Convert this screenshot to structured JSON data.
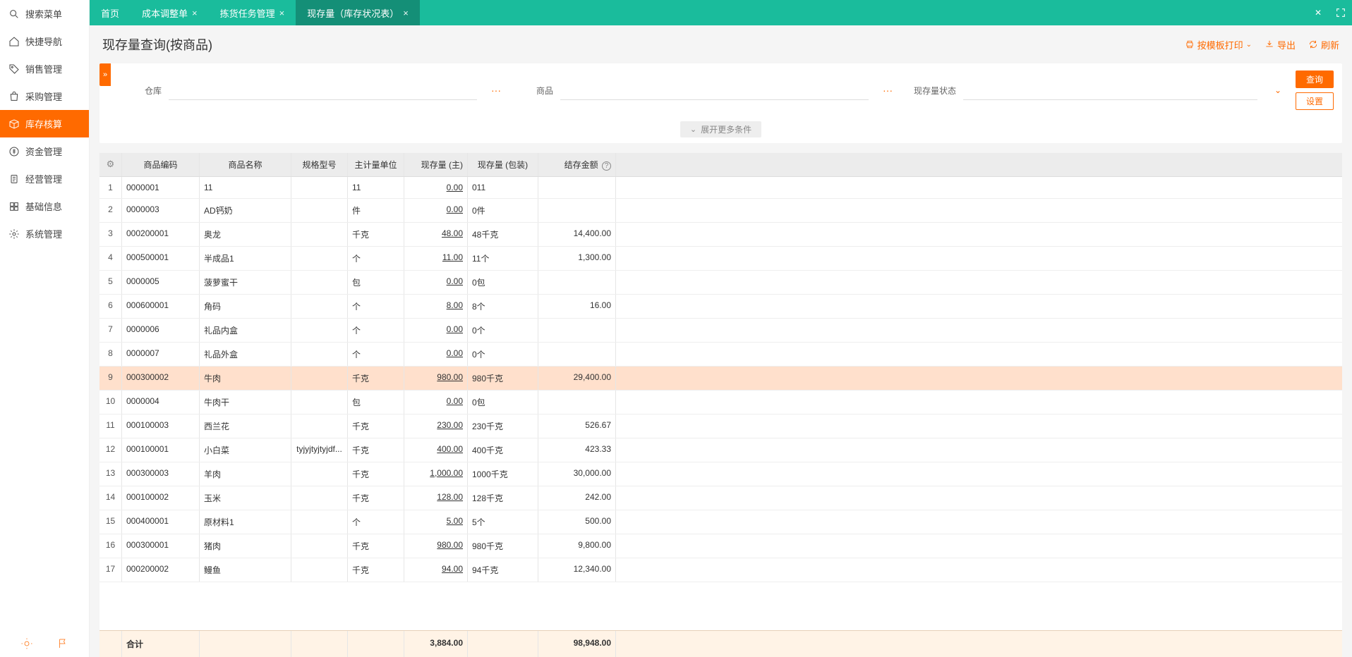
{
  "sidebar": {
    "items": [
      {
        "label": "搜索菜单",
        "icon": "search"
      },
      {
        "label": "快捷导航",
        "icon": "home"
      },
      {
        "label": "销售管理",
        "icon": "tag"
      },
      {
        "label": "采购管理",
        "icon": "bag"
      },
      {
        "label": "库存核算",
        "icon": "box",
        "active": true
      },
      {
        "label": "资金管理",
        "icon": "money"
      },
      {
        "label": "经营管理",
        "icon": "clip"
      },
      {
        "label": "基础信息",
        "icon": "grid"
      },
      {
        "label": "系统管理",
        "icon": "gear"
      }
    ]
  },
  "tabs": [
    {
      "label": "首页",
      "closable": false
    },
    {
      "label": "成本调整单",
      "closable": true
    },
    {
      "label": "拣货任务管理",
      "closable": true
    },
    {
      "label": "现存量（库存状况表）",
      "closable": true,
      "active": true
    }
  ],
  "page": {
    "title": "现存量查询(按商品)",
    "actions": {
      "printTpl": "按模板打印",
      "export": "导出",
      "refresh": "刷新"
    }
  },
  "filters": {
    "warehouse": {
      "label": "仓库"
    },
    "product": {
      "label": "商品"
    },
    "status": {
      "label": "现存量状态"
    },
    "queryBtn": "查询",
    "settingBtn": "设置",
    "expand": "展开更多条件"
  },
  "table": {
    "columns": {
      "code": "商品编码",
      "name": "商品名称",
      "spec": "规格型号",
      "unit": "主计量单位",
      "qty": "现存量 (主)",
      "pack": "现存量 (包装)",
      "amount": "结存金额"
    },
    "rows": [
      {
        "idx": 1,
        "code": "0000001",
        "name": "11",
        "spec": "",
        "unit": "11",
        "qty": "0.00",
        "pack": "011",
        "amount": ""
      },
      {
        "idx": 2,
        "code": "0000003",
        "name": "AD钙奶",
        "spec": "",
        "unit": "件",
        "qty": "0.00",
        "pack": "0件",
        "amount": ""
      },
      {
        "idx": 3,
        "code": "000200001",
        "name": "奥龙",
        "spec": "",
        "unit": "千克",
        "qty": "48.00",
        "pack": "48千克",
        "amount": "14,400.00"
      },
      {
        "idx": 4,
        "code": "000500001",
        "name": "半成品1",
        "spec": "",
        "unit": "个",
        "qty": "11.00",
        "pack": "11个",
        "amount": "1,300.00"
      },
      {
        "idx": 5,
        "code": "0000005",
        "name": "菠萝蜜干",
        "spec": "",
        "unit": "包",
        "qty": "0.00",
        "pack": "0包",
        "amount": ""
      },
      {
        "idx": 6,
        "code": "000600001",
        "name": "角码",
        "spec": "",
        "unit": "个",
        "qty": "8.00",
        "pack": "8个",
        "amount": "16.00"
      },
      {
        "idx": 7,
        "code": "0000006",
        "name": "礼品内盒",
        "spec": "",
        "unit": "个",
        "qty": "0.00",
        "pack": "0个",
        "amount": ""
      },
      {
        "idx": 8,
        "code": "0000007",
        "name": "礼品外盒",
        "spec": "",
        "unit": "个",
        "qty": "0.00",
        "pack": "0个",
        "amount": ""
      },
      {
        "idx": 9,
        "code": "000300002",
        "name": "牛肉",
        "spec": "",
        "unit": "千克",
        "qty": "980.00",
        "pack": "980千克",
        "amount": "29,400.00",
        "hl": true
      },
      {
        "idx": 10,
        "code": "0000004",
        "name": "牛肉干",
        "spec": "",
        "unit": "包",
        "qty": "0.00",
        "pack": "0包",
        "amount": ""
      },
      {
        "idx": 11,
        "code": "000100003",
        "name": "西兰花",
        "spec": "",
        "unit": "千克",
        "qty": "230.00",
        "pack": "230千克",
        "amount": "526.67"
      },
      {
        "idx": 12,
        "code": "000100001",
        "name": "小白菜",
        "spec": "tyjyjtyjtyjdf...",
        "unit": "千克",
        "qty": "400.00",
        "pack": "400千克",
        "amount": "423.33"
      },
      {
        "idx": 13,
        "code": "000300003",
        "name": "羊肉",
        "spec": "",
        "unit": "千克",
        "qty": "1,000.00",
        "pack": "1000千克",
        "amount": "30,000.00"
      },
      {
        "idx": 14,
        "code": "000100002",
        "name": "玉米",
        "spec": "",
        "unit": "千克",
        "qty": "128.00",
        "pack": "128千克",
        "amount": "242.00"
      },
      {
        "idx": 15,
        "code": "000400001",
        "name": "原材料1",
        "spec": "",
        "unit": "个",
        "qty": "5.00",
        "pack": "5个",
        "amount": "500.00"
      },
      {
        "idx": 16,
        "code": "000300001",
        "name": "猪肉",
        "spec": "",
        "unit": "千克",
        "qty": "980.00",
        "pack": "980千克",
        "amount": "9,800.00"
      },
      {
        "idx": 17,
        "code": "000200002",
        "name": "鳗鱼",
        "spec": "",
        "unit": "千克",
        "qty": "94.00",
        "pack": "94千克",
        "amount": "12,340.00"
      }
    ],
    "footer": {
      "label": "合计",
      "qty": "3,884.00",
      "amount": "98,948.00"
    }
  }
}
